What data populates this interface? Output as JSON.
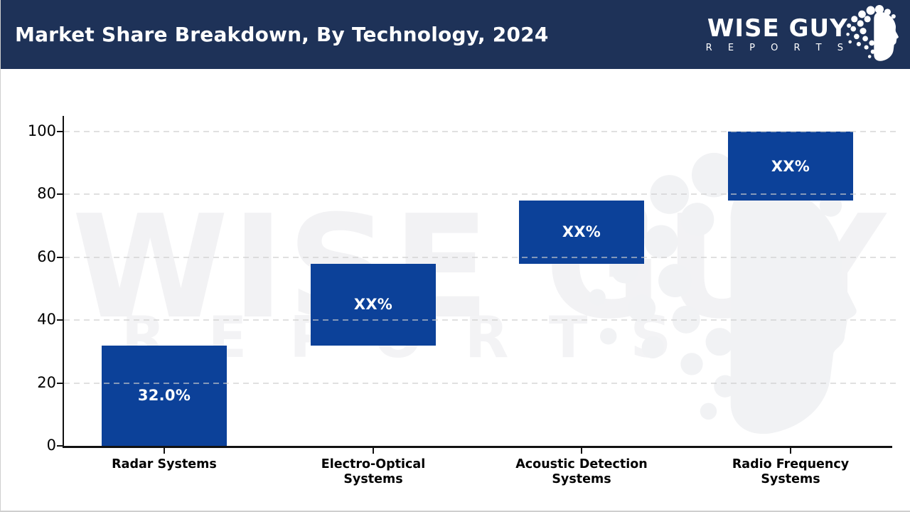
{
  "header": {
    "title": "Market Share Breakdown, By Technology, 2024",
    "bg_color": "#1e3258",
    "logo": {
      "line1": "WISE GUY",
      "line2": "R E P O R T S"
    }
  },
  "watermark": {
    "line1": "WISE GUY",
    "line2": "REPORTS"
  },
  "chart_data": {
    "type": "bar",
    "subtype": "waterfall",
    "title": "Market Share Breakdown, By Technology, 2024",
    "categories": [
      "Radar Systems",
      "Electro-Optical\nSystems",
      "Acoustic Detection\nSystems",
      "Radio Frequency\nSystems"
    ],
    "segments": [
      {
        "category": "Radar Systems",
        "start": 0,
        "end": 32,
        "label": "32.0%"
      },
      {
        "category": "Electro-Optical Systems",
        "start": 32,
        "end": 58,
        "label": "XX%"
      },
      {
        "category": "Acoustic Detection Systems",
        "start": 58,
        "end": 78,
        "label": "XX%"
      },
      {
        "category": "Radio Frequency Systems",
        "start": 78,
        "end": 100,
        "label": "XX%"
      }
    ],
    "yticks": [
      0,
      20,
      40,
      60,
      80,
      100
    ],
    "ylim": [
      0,
      105
    ],
    "xlabel": "",
    "ylabel": "",
    "grid": "horizontal-dashed",
    "legend": "none",
    "bar_color": "#0c4199",
    "bar_label_color": "#ffffff",
    "axis_color": "#111111"
  }
}
